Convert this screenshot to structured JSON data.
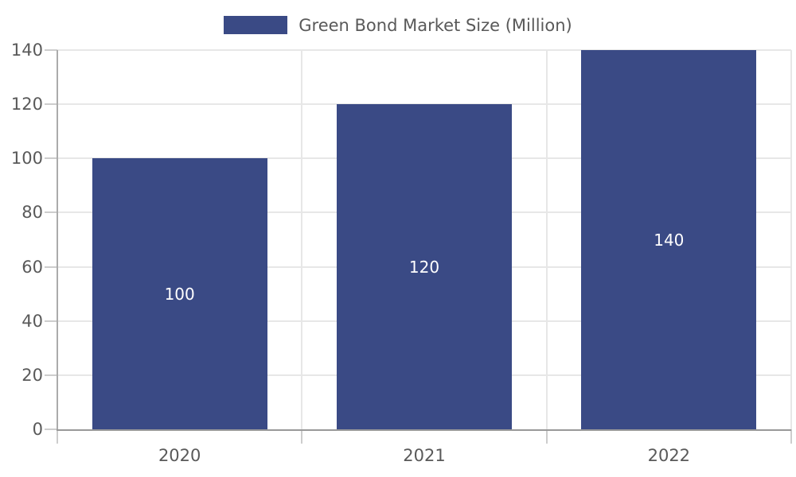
{
  "chart_data": {
    "type": "bar",
    "title": "Green Bond Market Size (Million)",
    "legend": [
      "Green Bond Market Size (Million)"
    ],
    "legend_position": "top-center",
    "categories": [
      "2020",
      "2021",
      "2022"
    ],
    "values": [
      100,
      120,
      140
    ],
    "series": [
      {
        "name": "Green Bond Market Size (Million)",
        "values": [
          100,
          120,
          140
        ]
      }
    ],
    "xlabel": "",
    "ylabel": "",
    "ylim": [
      0,
      140
    ],
    "ytick_step": 20,
    "yticks": [
      0,
      20,
      40,
      60,
      80,
      100,
      120,
      140
    ],
    "grid": true,
    "value_labels_position": "inside-center",
    "bar_width_ratio": 0.715,
    "bar_color": "#3A4A85",
    "value_label_color": "#ffffff",
    "axis_text_color": "#595959",
    "grid_color": "#e7e7e7",
    "axis_line_color": "#999999"
  }
}
